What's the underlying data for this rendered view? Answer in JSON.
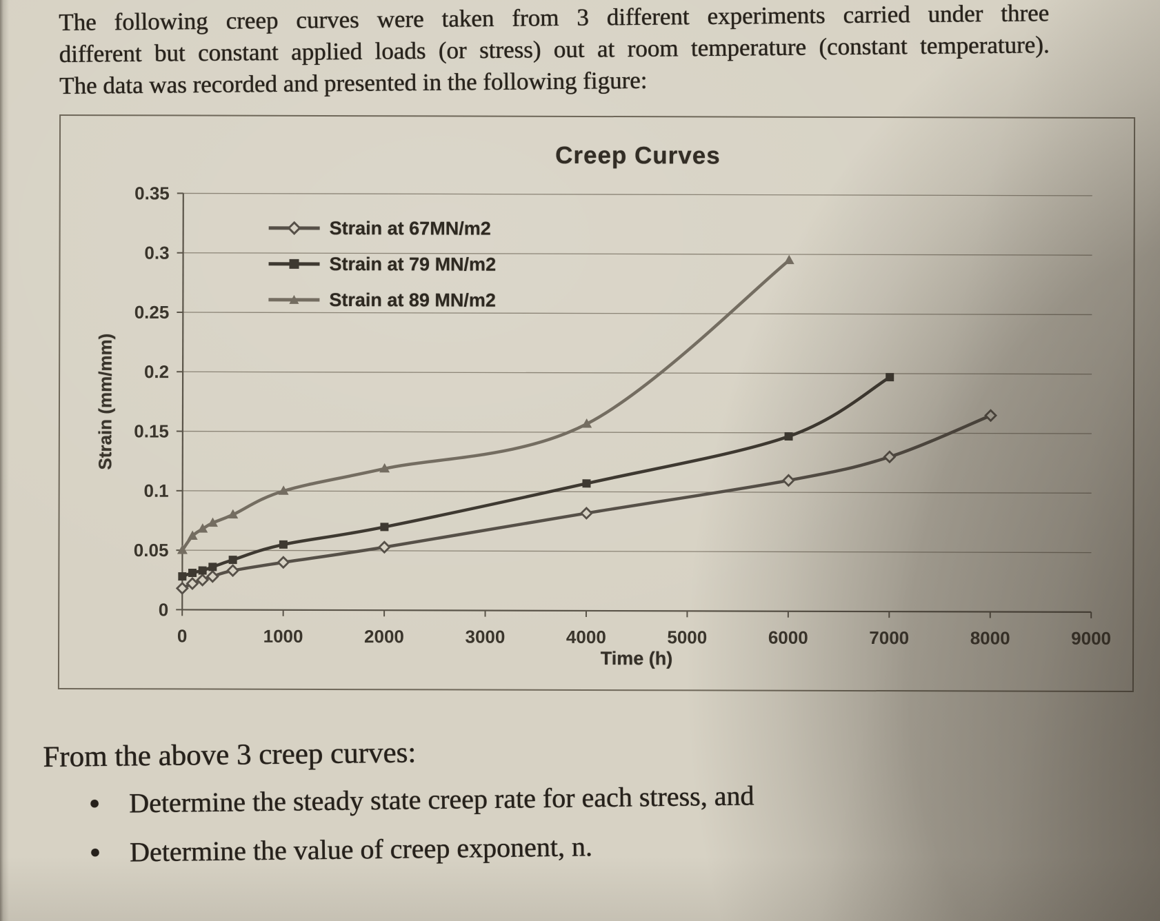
{
  "page": {
    "intro": {
      "lines": [
        "The following creep curves were taken from 3 different experiments carried under three",
        "different but constant applied loads (or stress) out at room temperature (constant temperature).",
        "The data was recorded and presented in the following figure:"
      ]
    },
    "closing": {
      "heading": "From the above 3 creep curves:",
      "bullet_glyph": "●",
      "bullets": [
        "Determine the steady state creep rate for each stress, and",
        "Determine the value of creep exponent, n."
      ]
    }
  },
  "chart_data": {
    "type": "line",
    "title": "Creep Curves",
    "xlabel": "Time (h)",
    "ylabel": "Strain (mm/mm)",
    "xlim": [
      0,
      9000
    ],
    "ylim": [
      0,
      0.35
    ],
    "x_ticks": {
      "values": [
        0,
        1000,
        2000,
        3000,
        4000,
        5000,
        6000,
        7000,
        8000,
        9000
      ],
      "labels": [
        "0",
        "1000",
        "2000",
        "3000",
        "4000",
        "5000",
        "6000",
        "7000",
        "8000",
        "9000"
      ]
    },
    "y_ticks": {
      "values": [
        0,
        0.05,
        0.1,
        0.15,
        0.2,
        0.25,
        0.3,
        0.35
      ],
      "labels": [
        "0",
        "0.05",
        "0.1",
        "0.15",
        "0.2",
        "0.25",
        "0.3",
        "0.35"
      ]
    },
    "grid": "horizontal-only",
    "legend_position": "inside-upper-left",
    "paper_color": "#d7d2c4",
    "grid_color": "#8b8476",
    "axis_color": "#5a5449",
    "series": [
      {
        "name": "Strain at 67MN/m2",
        "marker": "open-diamond",
        "color": "#565048",
        "x": [
          0,
          100,
          200,
          300,
          500,
          1000,
          2000,
          4000,
          6000,
          7000,
          8000
        ],
        "y": [
          0.018,
          0.022,
          0.025,
          0.028,
          0.033,
          0.04,
          0.053,
          0.082,
          0.11,
          0.13,
          0.165
        ]
      },
      {
        "name": "Strain at 79 MN/m2",
        "marker": "filled-square",
        "color": "#3e3931",
        "x": [
          0,
          100,
          200,
          300,
          500,
          1000,
          2000,
          4000,
          6000,
          7000
        ],
        "y": [
          0.028,
          0.031,
          0.033,
          0.036,
          0.042,
          0.055,
          0.07,
          0.107,
          0.147,
          0.197
        ]
      },
      {
        "name": "Strain at 89 MN/m2",
        "marker": "filled-triangle",
        "color": "#746d61",
        "x": [
          0,
          100,
          200,
          300,
          500,
          1000,
          2000,
          4000,
          6000
        ],
        "y": [
          0.05,
          0.062,
          0.068,
          0.073,
          0.08,
          0.1,
          0.119,
          0.157,
          0.295
        ]
      }
    ]
  }
}
